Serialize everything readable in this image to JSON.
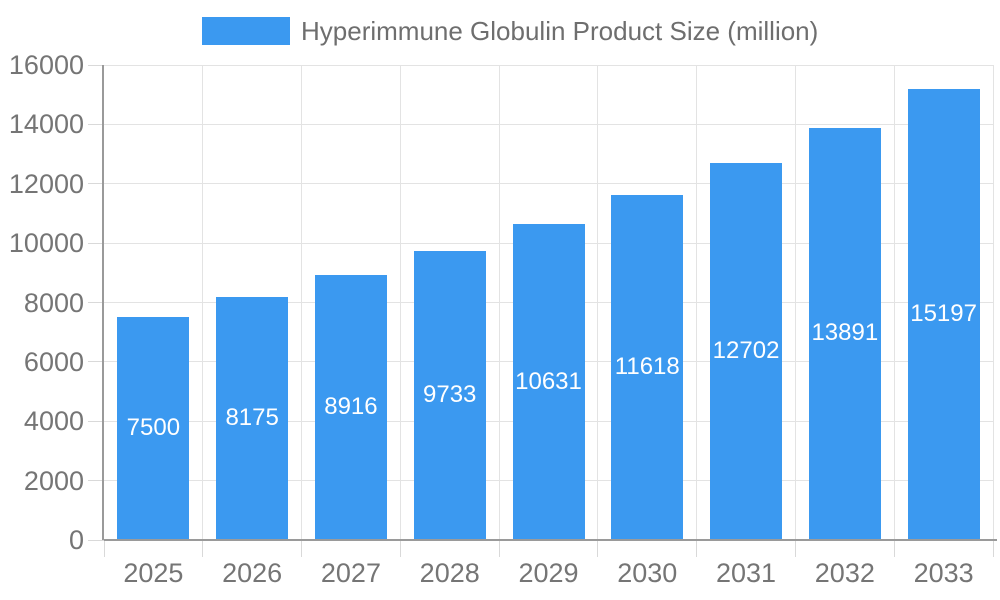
{
  "chart_data": {
    "type": "bar",
    "title": "Hyperimmune Globulin Product Size (million)",
    "xlabel": "",
    "ylabel": "",
    "categories": [
      "2025",
      "2026",
      "2027",
      "2028",
      "2029",
      "2030",
      "2031",
      "2032",
      "2033"
    ],
    "values": [
      7500,
      8175,
      8916,
      9733,
      10631,
      11618,
      12702,
      13891,
      15197
    ],
    "yticks": [
      0,
      2000,
      4000,
      6000,
      8000,
      10000,
      12000,
      14000,
      16000
    ],
    "ylim": [
      0,
      16000
    ],
    "ytick_step": 2000,
    "grid": true,
    "legend_position": "top",
    "colors": {
      "bar": "#3B99F0",
      "value_label": "#ffffff",
      "axis_text": "#757575",
      "legend_text": "#6e6e6e",
      "gridline": "#e3e3e3",
      "tick": "#d9d9d9",
      "axis_line": "#9a9a9a"
    }
  }
}
